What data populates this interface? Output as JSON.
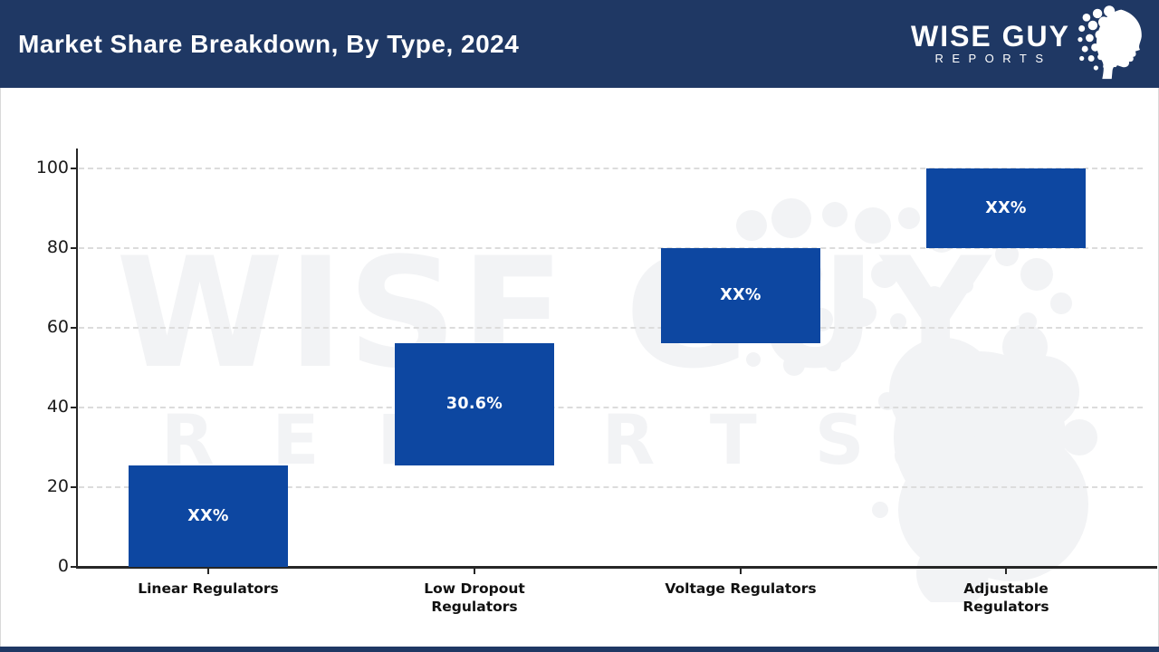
{
  "header": {
    "title": "Market Share Breakdown, By Type, 2024",
    "logo": {
      "primary": "WISE GUY",
      "secondary": "REPORTS"
    }
  },
  "watermark": {
    "primary": "WISE GUY",
    "secondary": "REPORTS"
  },
  "colors": {
    "header_bg": "#1F3864",
    "bar": "#0D47A1",
    "bar_label": "#ffffff",
    "gridline": "#dcdcdc",
    "axis": "#262626",
    "watermark": "#f2f3f5"
  },
  "chart_data": {
    "type": "bar",
    "subtype": "waterfall",
    "title": "Market Share Breakdown, By Type, 2024",
    "categories": [
      "Linear Regulators",
      "Low Dropout Regulators",
      "Voltage Regulators",
      "Adjustable Regulators"
    ],
    "categories_lines": [
      [
        "Linear Regulators"
      ],
      [
        "Low Dropout",
        "Regulators"
      ],
      [
        "Voltage Regulators"
      ],
      [
        "Adjustable",
        "Regulators"
      ]
    ],
    "bars": [
      {
        "category": "Linear Regulators",
        "start": 0,
        "end": 25.5,
        "label": "XX%"
      },
      {
        "category": "Low Dropout Regulators",
        "start": 25.5,
        "end": 56.1,
        "label": "30.6%",
        "value": 30.6
      },
      {
        "category": "Voltage Regulators",
        "start": 56.2,
        "end": 80,
        "label": "XX%"
      },
      {
        "category": "Adjustable Regulators",
        "start": 80,
        "end": 100,
        "label": "XX%"
      }
    ],
    "xlabel": "",
    "ylabel": "",
    "yticks": [
      0,
      20,
      40,
      60,
      80,
      100
    ],
    "ylim": [
      0,
      105
    ],
    "grid": "horizontal-dashed",
    "legend": "none"
  }
}
